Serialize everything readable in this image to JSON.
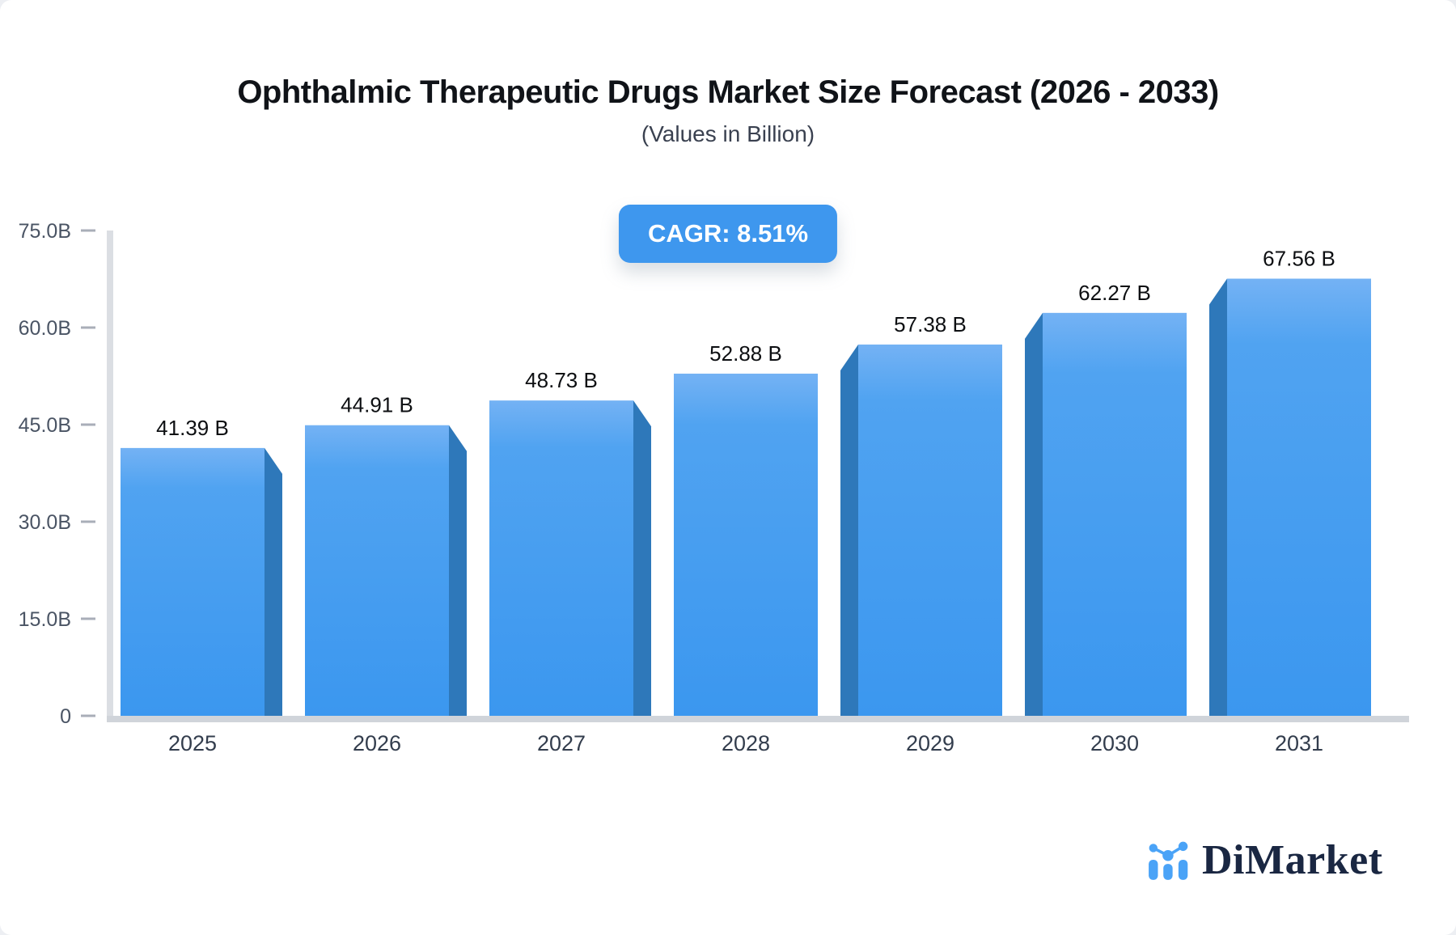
{
  "chart_data": {
    "type": "bar",
    "title": "Ophthalmic Therapeutic Drugs Market Size Forecast (2026 - 2033)",
    "subtitle": "(Values in Billion)",
    "badge": "CAGR: 8.51%",
    "categories": [
      "2025",
      "2026",
      "2027",
      "2028",
      "2029",
      "2030",
      "2031"
    ],
    "values": [
      41.39,
      44.91,
      48.73,
      52.88,
      57.38,
      62.27,
      67.56
    ],
    "value_labels": [
      "41.39 B",
      "44.91 B",
      "48.73 B",
      "52.88 B",
      "57.38 B",
      "62.27 B",
      "67.56 B"
    ],
    "ylim": [
      0,
      75
    ],
    "yticks": {
      "values": [
        0,
        15,
        30,
        45,
        60,
        75
      ],
      "labels": [
        "0",
        "15.0B",
        "30.0B",
        "45.0B",
        "60.0B",
        "75.0B"
      ]
    },
    "grid": false,
    "legend": "none",
    "bar_style": "3d-beveled"
  },
  "logo": {
    "text": "DiMarket"
  },
  "colors": {
    "badge_bg": "#3e97ee",
    "badge_text": "#ffffff",
    "bar_face_top": "#74b2f4",
    "bar_face_mid": "#50a3f1",
    "bar_face_bottom": "#3b97ef",
    "bar_side": "#2e78ba",
    "x_axis_line": "#d0d4da",
    "y_axis_line": "#dbdee3",
    "tick_dash": "#a9aeb8",
    "ytick_label": "#4a5464",
    "xtick_label": "#333d4d",
    "value_label": "#0d0f12",
    "title": "#101318",
    "subtitle": "#3a4150",
    "logo_blue": "#4aa3f7",
    "logo_text": "#1a2742"
  }
}
